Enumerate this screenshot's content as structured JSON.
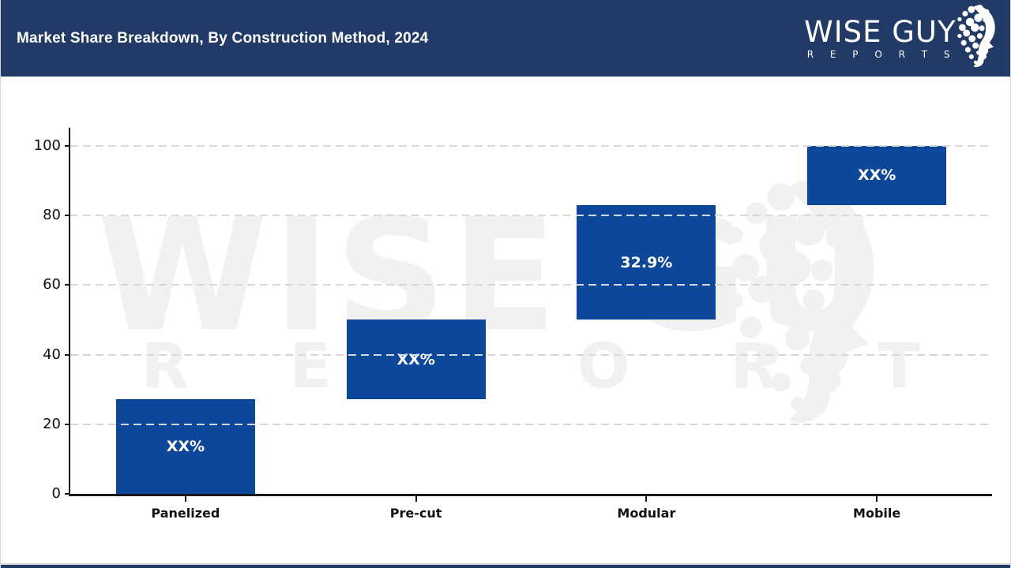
{
  "header": {
    "title": "Market Share Breakdown, By Construction Method, 2024",
    "logo": {
      "line1": "WISE GUY",
      "line2": "R E P O R T S"
    }
  },
  "watermark": {
    "line1": "WISE GU",
    "line2": "R E P O R T S"
  },
  "colors": {
    "header_bg": "#213a66",
    "footer_bg": "#213a66",
    "bar_blue": "#0d4799",
    "grid_gray": "#d8d8d8",
    "watermark_gray": "#f1f1f1"
  },
  "chart_data": {
    "type": "bar",
    "variant": "waterfall-floating-bars",
    "title": "Market Share Breakdown, By Construction Method, 2024",
    "categories": [
      "Panelized",
      "Pre-cut",
      "Modular",
      "Mobile"
    ],
    "segments": [
      {
        "category": "Panelized",
        "start": 0,
        "end": 27.2,
        "label": "XX%"
      },
      {
        "category": "Pre-cut",
        "start": 27.2,
        "end": 50.1,
        "label": "XX%"
      },
      {
        "category": "Modular",
        "start": 50.1,
        "end": 83.0,
        "label": "32.9%"
      },
      {
        "category": "Mobile",
        "start": 83.0,
        "end": 100,
        "label": "XX%"
      }
    ],
    "ylabel": "",
    "xlabel": "",
    "yticks": [
      0,
      20,
      40,
      60,
      80,
      100
    ],
    "ylim": [
      0,
      105
    ],
    "grid": {
      "axis": "y",
      "style": "dashed",
      "color": "#d8d8d8",
      "drawn_above_bars": true
    },
    "legend": null,
    "bar_color": "#0d4799",
    "bar_label_color": "#ffffff"
  }
}
